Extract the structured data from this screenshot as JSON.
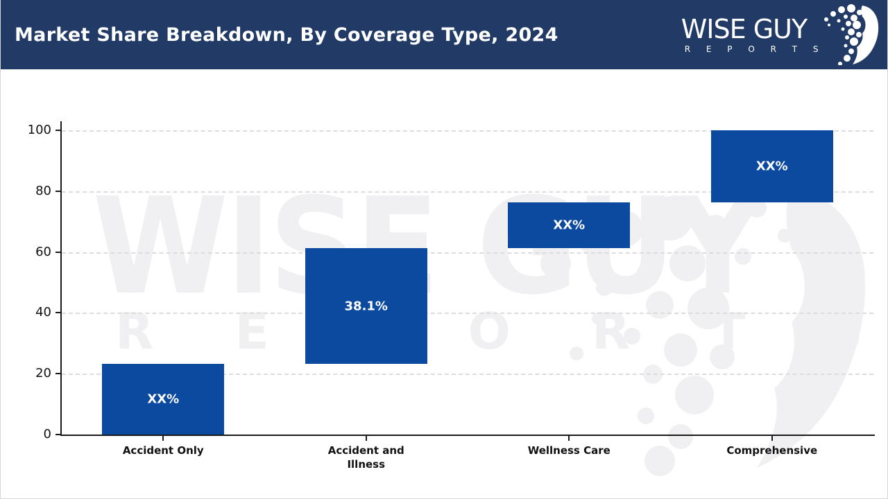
{
  "header": {
    "title": "Market Share Breakdown, By Coverage Type, 2024",
    "background_color": "#213a66",
    "logo": {
      "line1": "WISE GUY",
      "line2": "R E P O R T S"
    }
  },
  "watermark": {
    "line1": "WISE GUY",
    "line2": "R E P O R T S"
  },
  "chart_data": {
    "type": "bar",
    "subtype": "floating-waterfall",
    "title": "Market Share Breakdown, By Coverage Type, 2024",
    "categories": [
      "Accident Only",
      "Accident and Illness",
      "Wellness Care",
      "Comprehensive"
    ],
    "segments": [
      {
        "category": "Accident Only",
        "start": 0,
        "end": 23.2,
        "size": 23.2,
        "label": "XX%"
      },
      {
        "category": "Accident and Illness",
        "start": 23.2,
        "end": 61.3,
        "size": 38.1,
        "label": "38.1%"
      },
      {
        "category": "Wellness Care",
        "start": 61.3,
        "end": 76.4,
        "size": 15.1,
        "label": "XX%"
      },
      {
        "category": "Comprehensive",
        "start": 76.4,
        "end": 100,
        "size": 23.6,
        "label": "XX%"
      }
    ],
    "xlabel": "",
    "ylabel": "",
    "ylim": [
      0,
      100
    ],
    "yticks": [
      0,
      20,
      40,
      60,
      80,
      100
    ],
    "grid": "horizontal-dashed",
    "legend": "none",
    "bar_color": "#0c4aa0",
    "axis_color": "#1a1a1a"
  }
}
